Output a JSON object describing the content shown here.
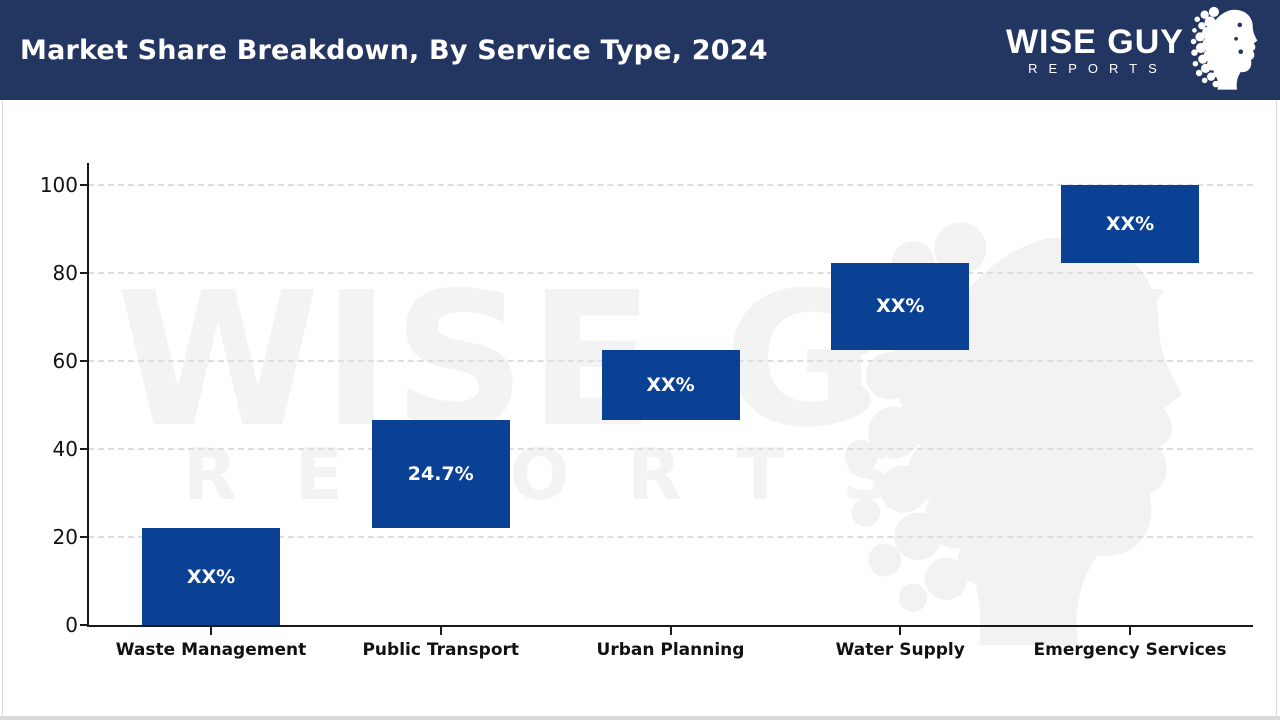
{
  "header": {
    "title": "Market Share Breakdown, By Service Type, 2024",
    "bg_color": "#233662",
    "logo": {
      "line1": "WISE GUY",
      "line2": "REPORTS"
    }
  },
  "watermark": {
    "line1": "WISE GUY",
    "line2": "REPORTS"
  },
  "chart_data": {
    "type": "bar",
    "subtype": "waterfall",
    "title": "Market Share Breakdown, By Service Type, 2024",
    "categories": [
      "Waste Management",
      "Public Transport",
      "Urban Planning",
      "Water Supply",
      "Emergency Services"
    ],
    "segments": [
      {
        "category": "Waste Management",
        "start": 0,
        "end": 22,
        "label": "XX%"
      },
      {
        "category": "Public Transport",
        "start": 22,
        "end": 46.7,
        "label": "24.7%"
      },
      {
        "category": "Urban Planning",
        "start": 46.7,
        "end": 62.5,
        "label": "XX%"
      },
      {
        "category": "Water Supply",
        "start": 62.5,
        "end": 82.3,
        "label": "XX%"
      },
      {
        "category": "Emergency Services",
        "start": 82.3,
        "end": 100,
        "label": "XX%"
      }
    ],
    "y_ticks": [
      0,
      20,
      40,
      60,
      80,
      100
    ],
    "ylim": [
      0,
      105
    ],
    "xlabel": "",
    "ylabel": "",
    "grid": true,
    "legend": false,
    "bar_color": "#0b4194",
    "grid_color": "#dedede",
    "axis_color": "#1a1a1a",
    "tick_label_color": "#111111"
  }
}
